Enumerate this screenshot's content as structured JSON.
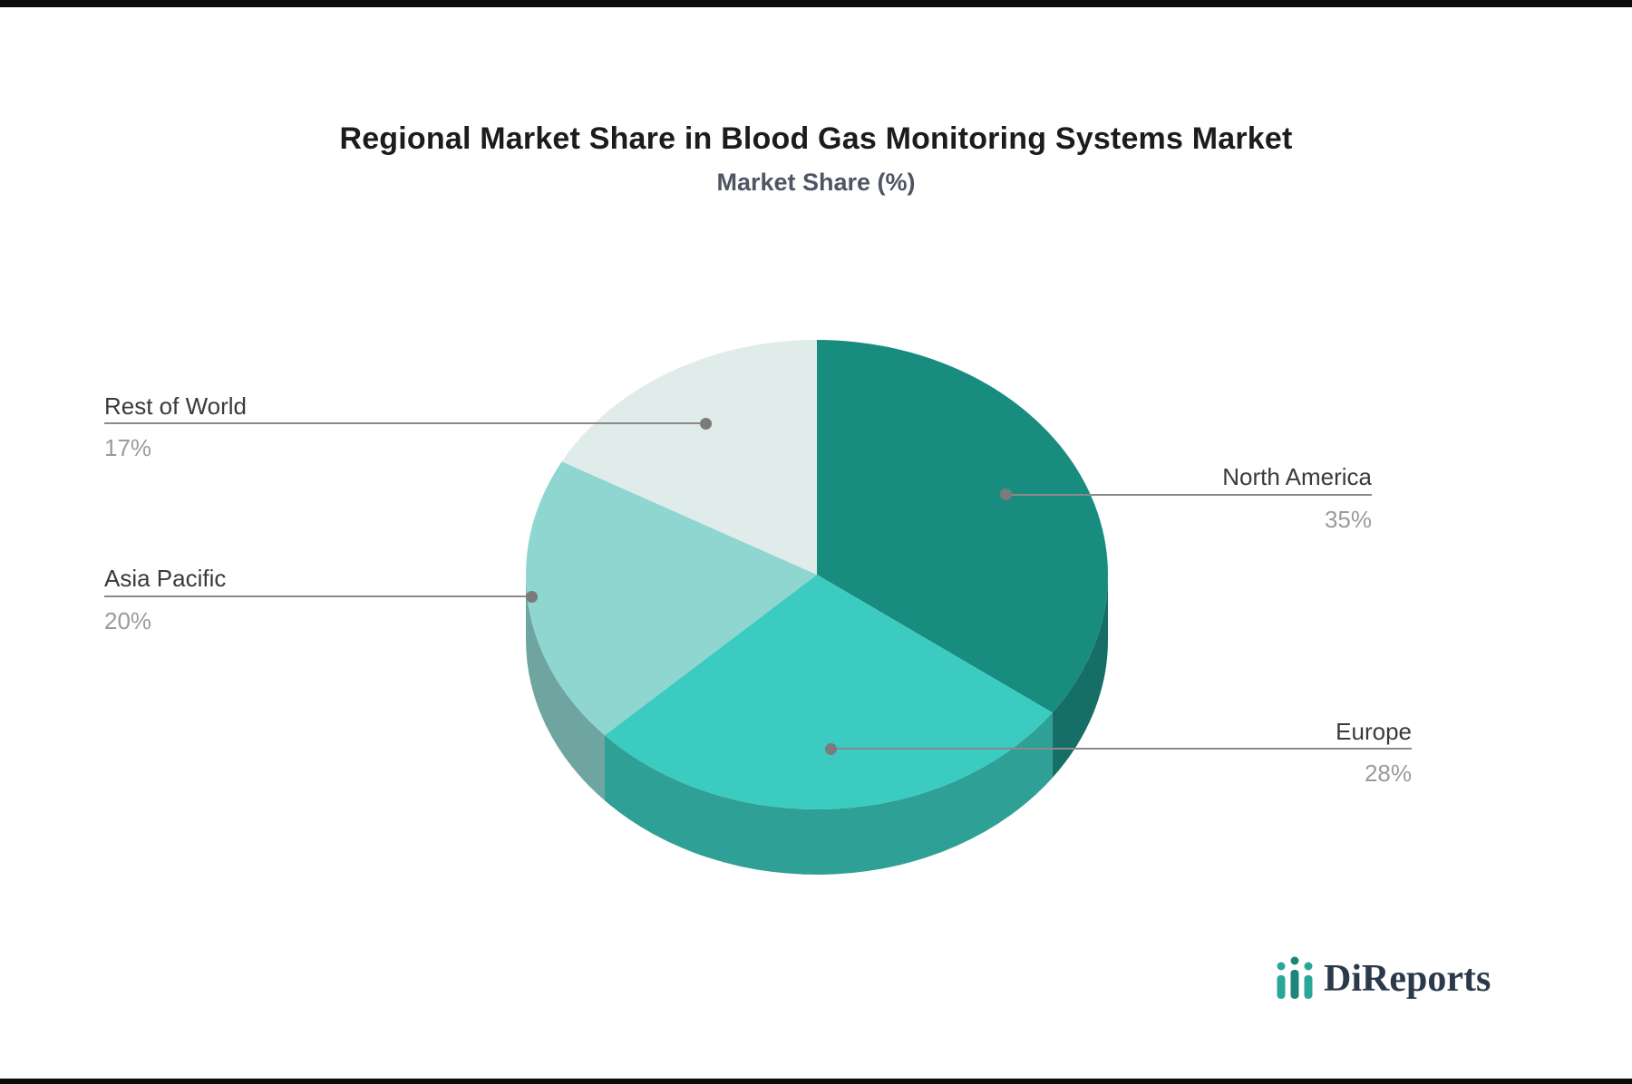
{
  "page": {
    "title": "Regional Market Share in Blood Gas Monitoring Systems Market",
    "subtitle": "Market Share (%)"
  },
  "chart_data": {
    "type": "pie",
    "style": "3d",
    "title": "Regional Market Share in Blood Gas Monitoring Systems Market",
    "subtitle": "Market Share (%)",
    "unit": "%",
    "start_angle_deg": -90,
    "direction": "clockwise",
    "legend_position": "callout-labels",
    "series": [
      {
        "label": "North America",
        "value": 35,
        "display": "35%",
        "color": "#198C80",
        "side_color": "#166F66"
      },
      {
        "label": "Europe",
        "value": 28,
        "display": "28%",
        "color": "#3BCBC0",
        "side_color": "#2EA095"
      },
      {
        "label": "Asia Pacific",
        "value": 20,
        "display": "20%",
        "color": "#8FD6D1",
        "side_color": "#6FA5A0"
      },
      {
        "label": "Rest of World",
        "value": 17,
        "display": "17%",
        "color": "#DFECE9",
        "side_color": "#B9CFCB"
      }
    ]
  },
  "branding": {
    "logo_text": "DiReports"
  },
  "colors": {
    "callout_line": "#8a8a8a",
    "callout_dot": "#7b7b7b",
    "label_text": "#3a3a3a",
    "value_text": "#9b9b9b",
    "title_text": "#1c1c1c",
    "subtitle_text": "#4d5663",
    "logo_text": "#2b3a4a",
    "logo_accent": "#2aa79b"
  }
}
